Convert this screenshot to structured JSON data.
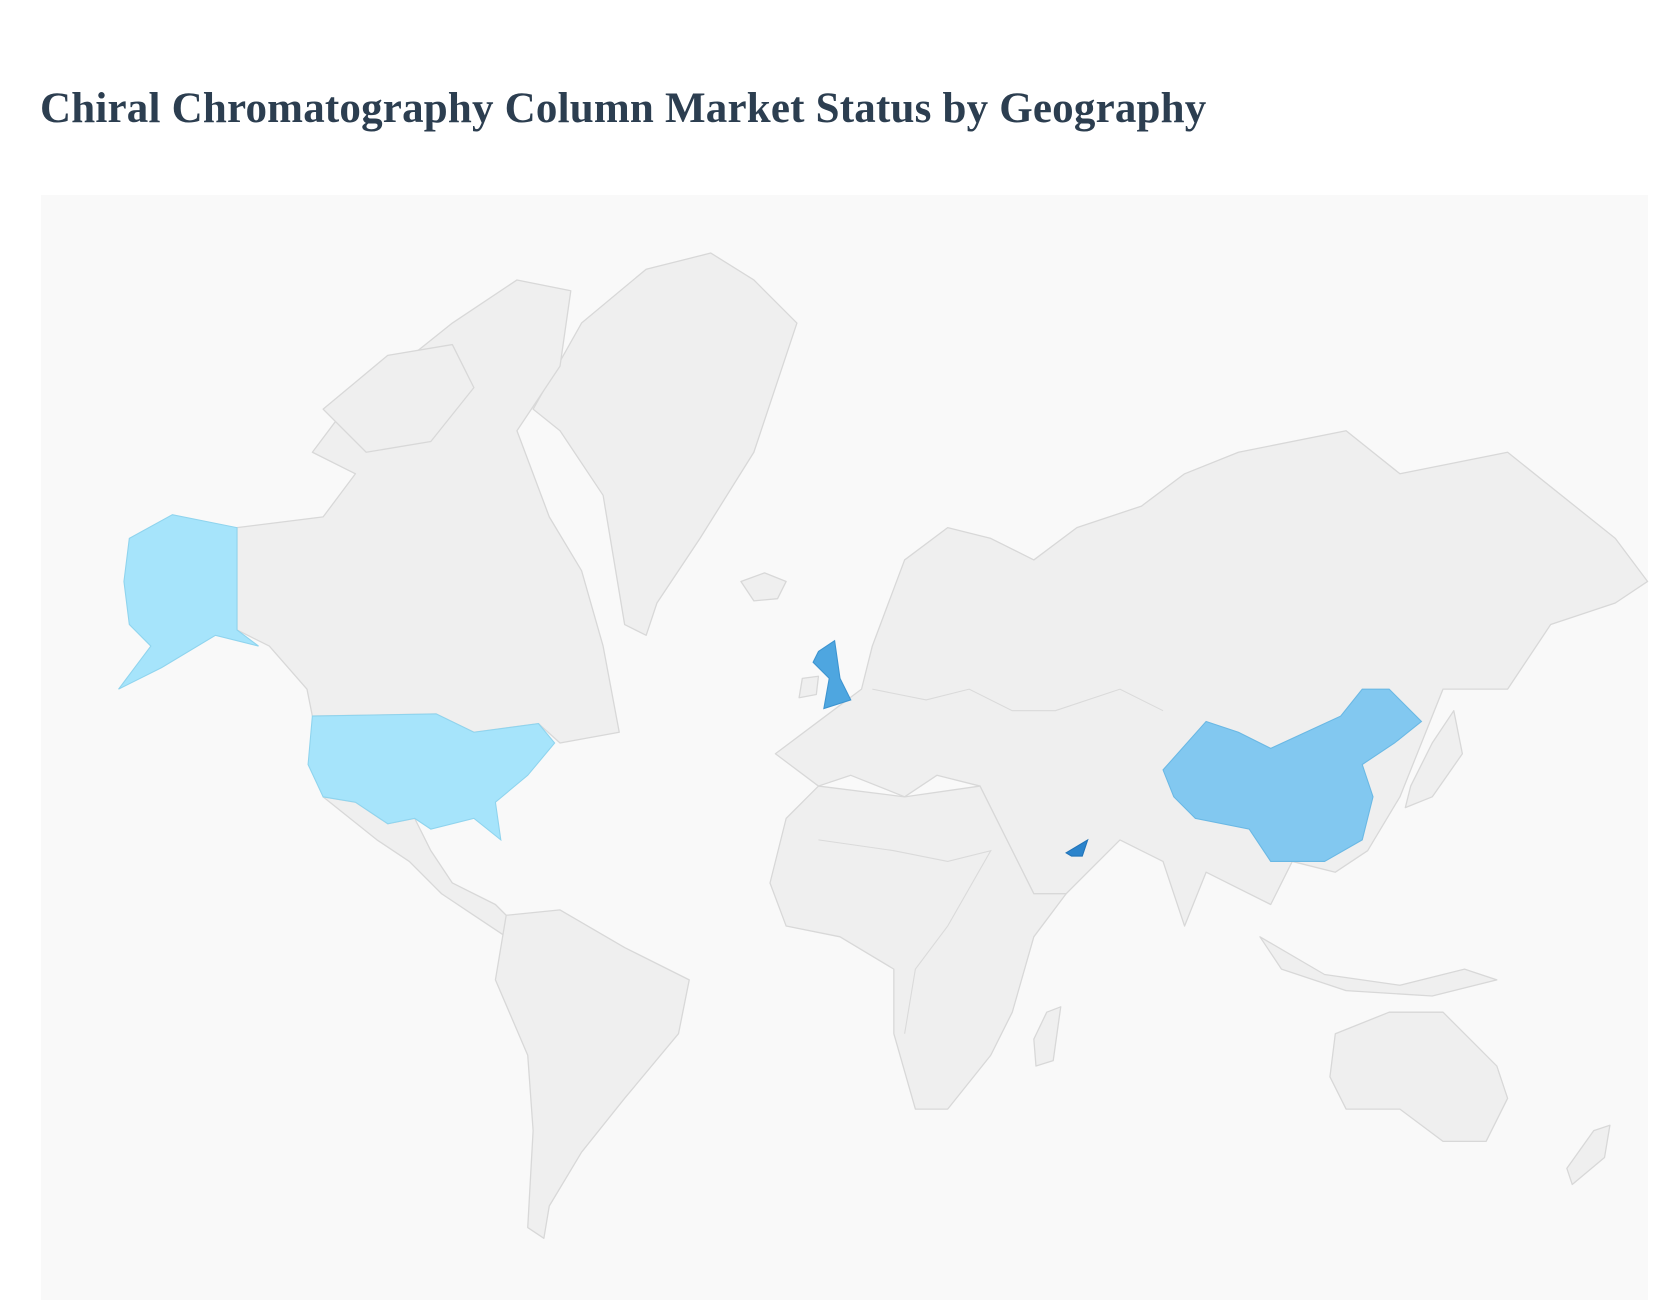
{
  "title": "Chiral Chromatography Column Market Status by Geography",
  "map": {
    "type": "choropleth",
    "projection": "mercator",
    "default_land_color": "#efefef",
    "border_color": "#d8d8d8",
    "background_color": "#f9f9f9",
    "highlighted_regions": [
      {
        "country": "United States",
        "color": "#a6e4fb"
      },
      {
        "country": "China",
        "color": "#82c8f0"
      },
      {
        "country": "United Kingdom",
        "color": "#4ea6e0"
      },
      {
        "country": "United Arab Emirates",
        "color": "#2b84cc"
      }
    ]
  }
}
